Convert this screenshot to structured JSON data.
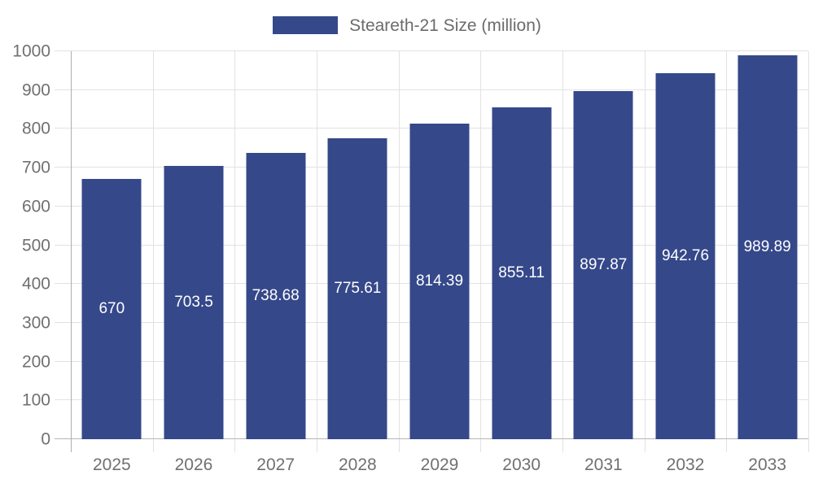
{
  "legend": {
    "label": "Steareth-21 Size (million)",
    "swatch_color": "#35488a"
  },
  "chart_data": {
    "type": "bar",
    "title": "",
    "xlabel": "",
    "ylabel": "",
    "categories": [
      "2025",
      "2026",
      "2027",
      "2028",
      "2029",
      "2030",
      "2031",
      "2032",
      "2033"
    ],
    "series": [
      {
        "name": "Steareth-21 Size (million)",
        "values": [
          670,
          703.5,
          738.68,
          775.61,
          814.39,
          855.11,
          897.87,
          942.76,
          989.89
        ],
        "value_labels": [
          "670",
          "703.5",
          "738.68",
          "775.61",
          "814.39",
          "855.11",
          "897.87",
          "942.76",
          "989.89"
        ]
      }
    ],
    "ylim": [
      0,
      1000
    ],
    "ytick_step": 100,
    "yticks": [
      "0",
      "100",
      "200",
      "300",
      "400",
      "500",
      "600",
      "700",
      "800",
      "900",
      "1000"
    ],
    "grid": true,
    "legend_position": "top-center",
    "bar_color": "#35488a",
    "value_label_color": "#ffffff",
    "axis_text_color": "#707070",
    "grid_color": "#e2e2e2"
  }
}
